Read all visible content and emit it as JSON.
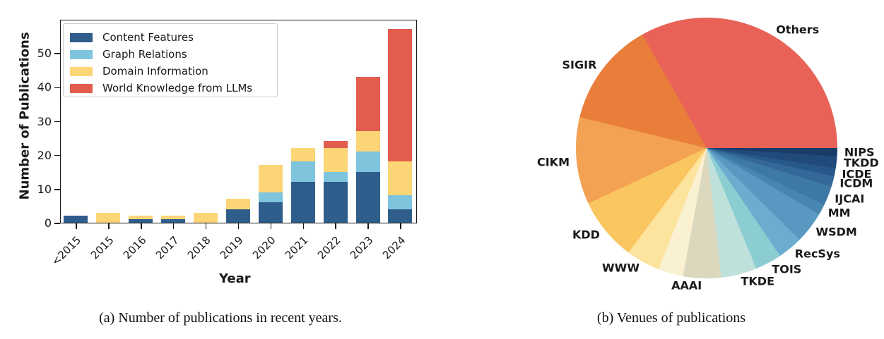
{
  "figure": {
    "caption_a": "(a) Number of publications in recent years.",
    "caption_b": "(b) Venues of publications"
  },
  "chart_data": [
    {
      "type": "bar",
      "stacked": true,
      "title": "",
      "xlabel": "Year",
      "ylabel": "Number of Publications",
      "ylim": [
        0,
        60
      ],
      "yticks": [
        "0",
        "10",
        "20",
        "30",
        "40",
        "50"
      ],
      "grid": false,
      "legend_position": "upper left",
      "categories": [
        "<2015",
        "2015",
        "2016",
        "2017",
        "2018",
        "2019",
        "2020",
        "2021",
        "2022",
        "2023",
        "2024"
      ],
      "series": [
        {
          "name": "Content Features",
          "color": "#2f5d8c",
          "values": [
            2,
            0,
            1,
            1,
            0,
            4,
            6,
            12,
            12,
            15,
            4
          ]
        },
        {
          "name": "Graph Relations",
          "color": "#7ec4dc",
          "values": [
            0,
            0,
            0,
            0,
            0,
            0,
            3,
            6,
            3,
            6,
            4
          ]
        },
        {
          "name": "Domain Information",
          "color": "#fcd576",
          "values": [
            0,
            3,
            1,
            1,
            3,
            3,
            8,
            4,
            7,
            6,
            10
          ]
        },
        {
          "name": "World Knowledge from LLMs",
          "color": "#e25d4e",
          "values": [
            0,
            0,
            0,
            0,
            0,
            0,
            0,
            0,
            2,
            16,
            39
          ]
        }
      ],
      "totals": [
        2,
        3,
        2,
        2,
        3,
        7,
        17,
        22,
        24,
        43,
        57
      ]
    },
    {
      "type": "pie",
      "title": "",
      "start_angle": "east, clockwise",
      "slices": [
        {
          "label": "NIPS",
          "percent": 1.0,
          "color": "#1a3a68"
        },
        {
          "label": "TKDD",
          "percent": 1.5,
          "color": "#204a7a"
        },
        {
          "label": "ICDE",
          "percent": 1.0,
          "color": "#28588a"
        },
        {
          "label": "ICDM",
          "percent": 1.3,
          "color": "#346898"
        },
        {
          "label": "IJCAI",
          "percent": 2.4,
          "color": "#3e78a5"
        },
        {
          "label": "MM",
          "percent": 1.3,
          "color": "#4886b2"
        },
        {
          "label": "WSDM",
          "percent": 3.9,
          "color": "#5898c1"
        },
        {
          "label": "RecSys",
          "percent": 3.1,
          "color": "#6cacce"
        },
        {
          "label": "TOIS",
          "percent": 3.3,
          "color": "#8ccdd2"
        },
        {
          "label": "TKDE",
          "percent": 4.4,
          "color": "#bee1dc"
        },
        {
          "label": "AAAI",
          "percent": 4.7,
          "color": "#dbd8be"
        },
        {
          "label": "",
          "percent": 3.1,
          "color": "#faf0d2"
        },
        {
          "label": "WWW",
          "percent": 4.2,
          "color": "#fde49e"
        },
        {
          "label": "KDD",
          "percent": 7.8,
          "color": "#fac660"
        },
        {
          "label": "CIKM",
          "percent": 10.8,
          "color": "#f2a252"
        },
        {
          "label": "SIGIR",
          "percent": 13.0,
          "color": "#e97e3a"
        },
        {
          "label": "Others",
          "percent": 33.2,
          "color": "#e86258"
        }
      ]
    }
  ]
}
